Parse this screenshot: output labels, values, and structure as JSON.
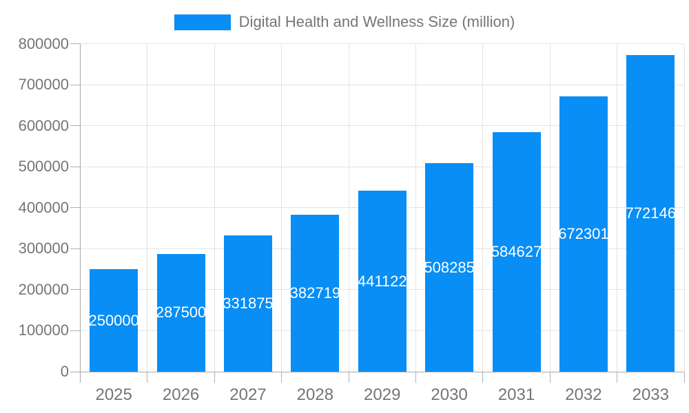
{
  "chart_data": {
    "type": "bar",
    "title": "Digital Health and Wellness Size (million)",
    "legend_label": "Digital Health and Wellness Size (million)",
    "legend_position": "top",
    "categories": [
      "2025",
      "2026",
      "2027",
      "2028",
      "2029",
      "2030",
      "2031",
      "2032",
      "2033"
    ],
    "values": [
      250000,
      287500,
      331875,
      382719,
      441122,
      508285,
      584627,
      672301,
      772146
    ],
    "bar_labels": [
      "250000",
      "287500",
      "331875",
      "382719",
      "441122",
      "508285",
      "584627",
      "672301",
      "772146"
    ],
    "xlabel": "",
    "ylabel": "",
    "ylim": [
      0,
      800000
    ],
    "ytick_step": 100000,
    "ytick_labels": [
      "0",
      "100000",
      "200000",
      "300000",
      "400000",
      "500000",
      "600000",
      "700000",
      "800000"
    ],
    "grid": true,
    "colors": {
      "bar": "#088ef5",
      "bar_label": "#ffffff",
      "axis_text": "#757575",
      "gridline": "#e3e3e3",
      "axis_line": "#a9a9a9",
      "tick": "#b0b0b0",
      "background": "#ffffff"
    }
  }
}
